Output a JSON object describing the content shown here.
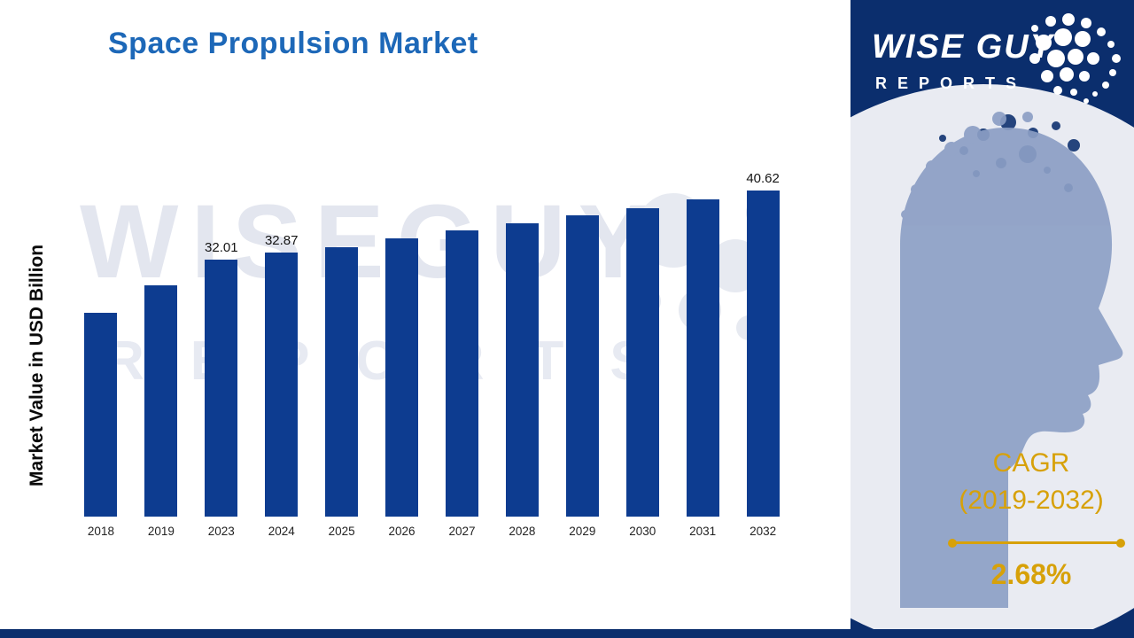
{
  "title": "Space Propulsion Market",
  "y_axis_label": "Market Value in USD Billion",
  "chart_data": {
    "type": "bar",
    "title": "Space Propulsion Market",
    "xlabel": "",
    "ylabel": "Market Value in USD Billion",
    "categories": [
      "2018",
      "2019",
      "2023",
      "2024",
      "2025",
      "2026",
      "2027",
      "2028",
      "2029",
      "2030",
      "2031",
      "2032"
    ],
    "values": [
      25.4,
      28.8,
      32.01,
      32.87,
      33.6,
      34.7,
      35.6,
      36.5,
      37.5,
      38.4,
      39.5,
      40.62
    ],
    "data_labels": [
      "",
      "",
      "32.01",
      "32.87",
      "",
      "",
      "",
      "",
      "",
      "",
      "",
      "40.62"
    ],
    "bar_color": "#0d3c90",
    "ylim": [
      0,
      45
    ],
    "grid": false,
    "legend": false
  },
  "watermark": {
    "line1": "WISEGUY",
    "line2": "REPORTS"
  },
  "brand_panel": {
    "logo_line1": "WISE GUY",
    "logo_line2": "REPORTS",
    "cagr_label": "CAGR",
    "cagr_period": "(2019-2032)",
    "cagr_value": "2.68%",
    "panel_color": "#0b2e6d",
    "accent_color": "#d7a109",
    "head_color": "#8c9fc5"
  },
  "footer": {
    "bar_color": "#0b2e6d"
  }
}
